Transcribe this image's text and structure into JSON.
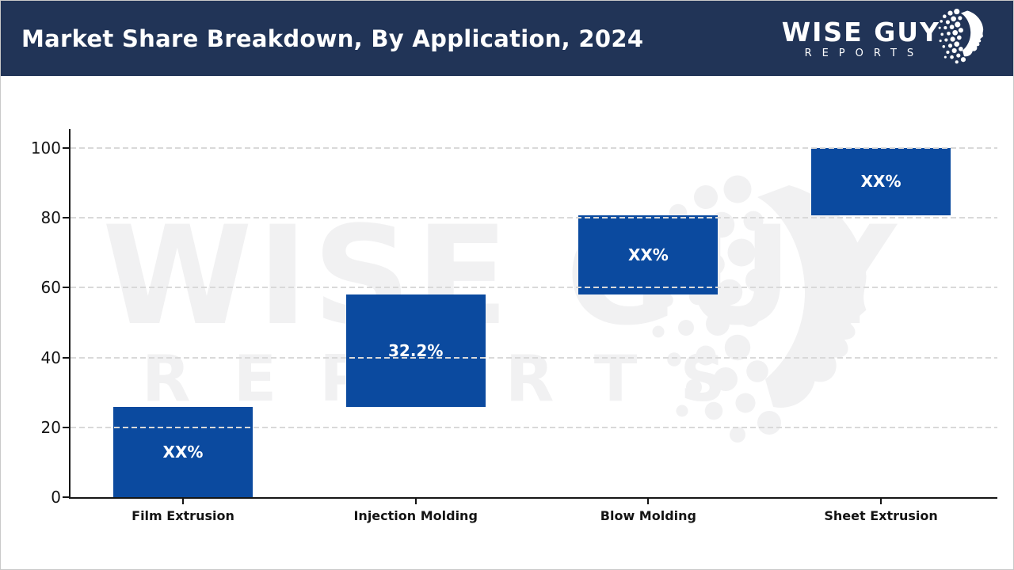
{
  "header": {
    "title": "Market Share Breakdown, By Application, 2024",
    "logo": {
      "line1": "WISE GUY",
      "line2": "REPORTS"
    }
  },
  "watermark": {
    "line1": "WISE GUY",
    "line2": "REPORTS"
  },
  "chart_data": {
    "type": "bar",
    "subtype": "waterfall",
    "title": "Market Share Breakdown, By Application, 2024",
    "xlabel": "",
    "ylabel": "",
    "categories": [
      "Film Extrusion",
      "Injection Molding",
      "Blow Molding",
      "Sheet Extrusion"
    ],
    "segments": [
      {
        "category": "Film Extrusion",
        "start": 0,
        "end": 25.8,
        "label": "XX%"
      },
      {
        "category": "Injection Molding",
        "start": 25.8,
        "end": 58.0,
        "label": "32.2%"
      },
      {
        "category": "Blow Molding",
        "start": 58.0,
        "end": 80.8,
        "label": "XX%"
      },
      {
        "category": "Sheet Extrusion",
        "start": 80.8,
        "end": 100,
        "label": "XX%"
      }
    ],
    "y_ticks": [
      0,
      20,
      40,
      60,
      80,
      100
    ],
    "ylim": [
      0,
      105
    ],
    "grid": "horizontal-dashed",
    "grid_above_bars": true,
    "legend": "none",
    "bar_color": "#0b4a9f",
    "axis_color": "#161616",
    "gridline_color": "#d9d9d9",
    "header_color": "#213457",
    "watermark_color": "#f1f1f2"
  }
}
